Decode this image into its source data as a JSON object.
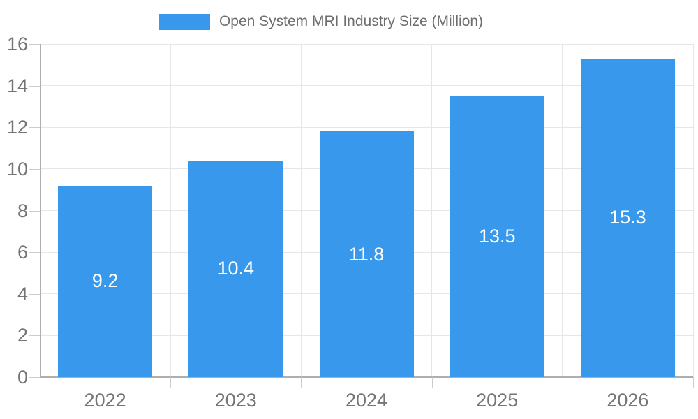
{
  "legend": {
    "label": "Open System MRI Industry Size (Million)"
  },
  "colors": {
    "bar": "#3899EC",
    "bar_label": "#FFFFFF",
    "grid": "#E6E6E6",
    "axis": "#AEAEAE",
    "tick": "#CCCCCC",
    "tick_text": "#757575",
    "legend_text": "#6E6E6E",
    "background": "#FFFFFF"
  },
  "chart_data": {
    "type": "bar",
    "title": "Open System MRI Industry Size (Million)",
    "categories": [
      "2022",
      "2023",
      "2024",
      "2025",
      "2026"
    ],
    "values": [
      9.2,
      10.4,
      11.8,
      13.5,
      15.3
    ],
    "bar_labels": [
      "9.2",
      "10.4",
      "11.8",
      "13.5",
      "15.3"
    ],
    "xlabel": "",
    "ylabel": "",
    "ylim": [
      0,
      16
    ],
    "ytick_step": 2,
    "yticks": [
      0,
      2,
      4,
      6,
      8,
      10,
      12,
      14,
      16
    ],
    "grid": true,
    "legend_position": "top-center",
    "legend_entries": [
      "Open System MRI Industry Size (Million)"
    ],
    "bar_value_label_position": "center"
  }
}
